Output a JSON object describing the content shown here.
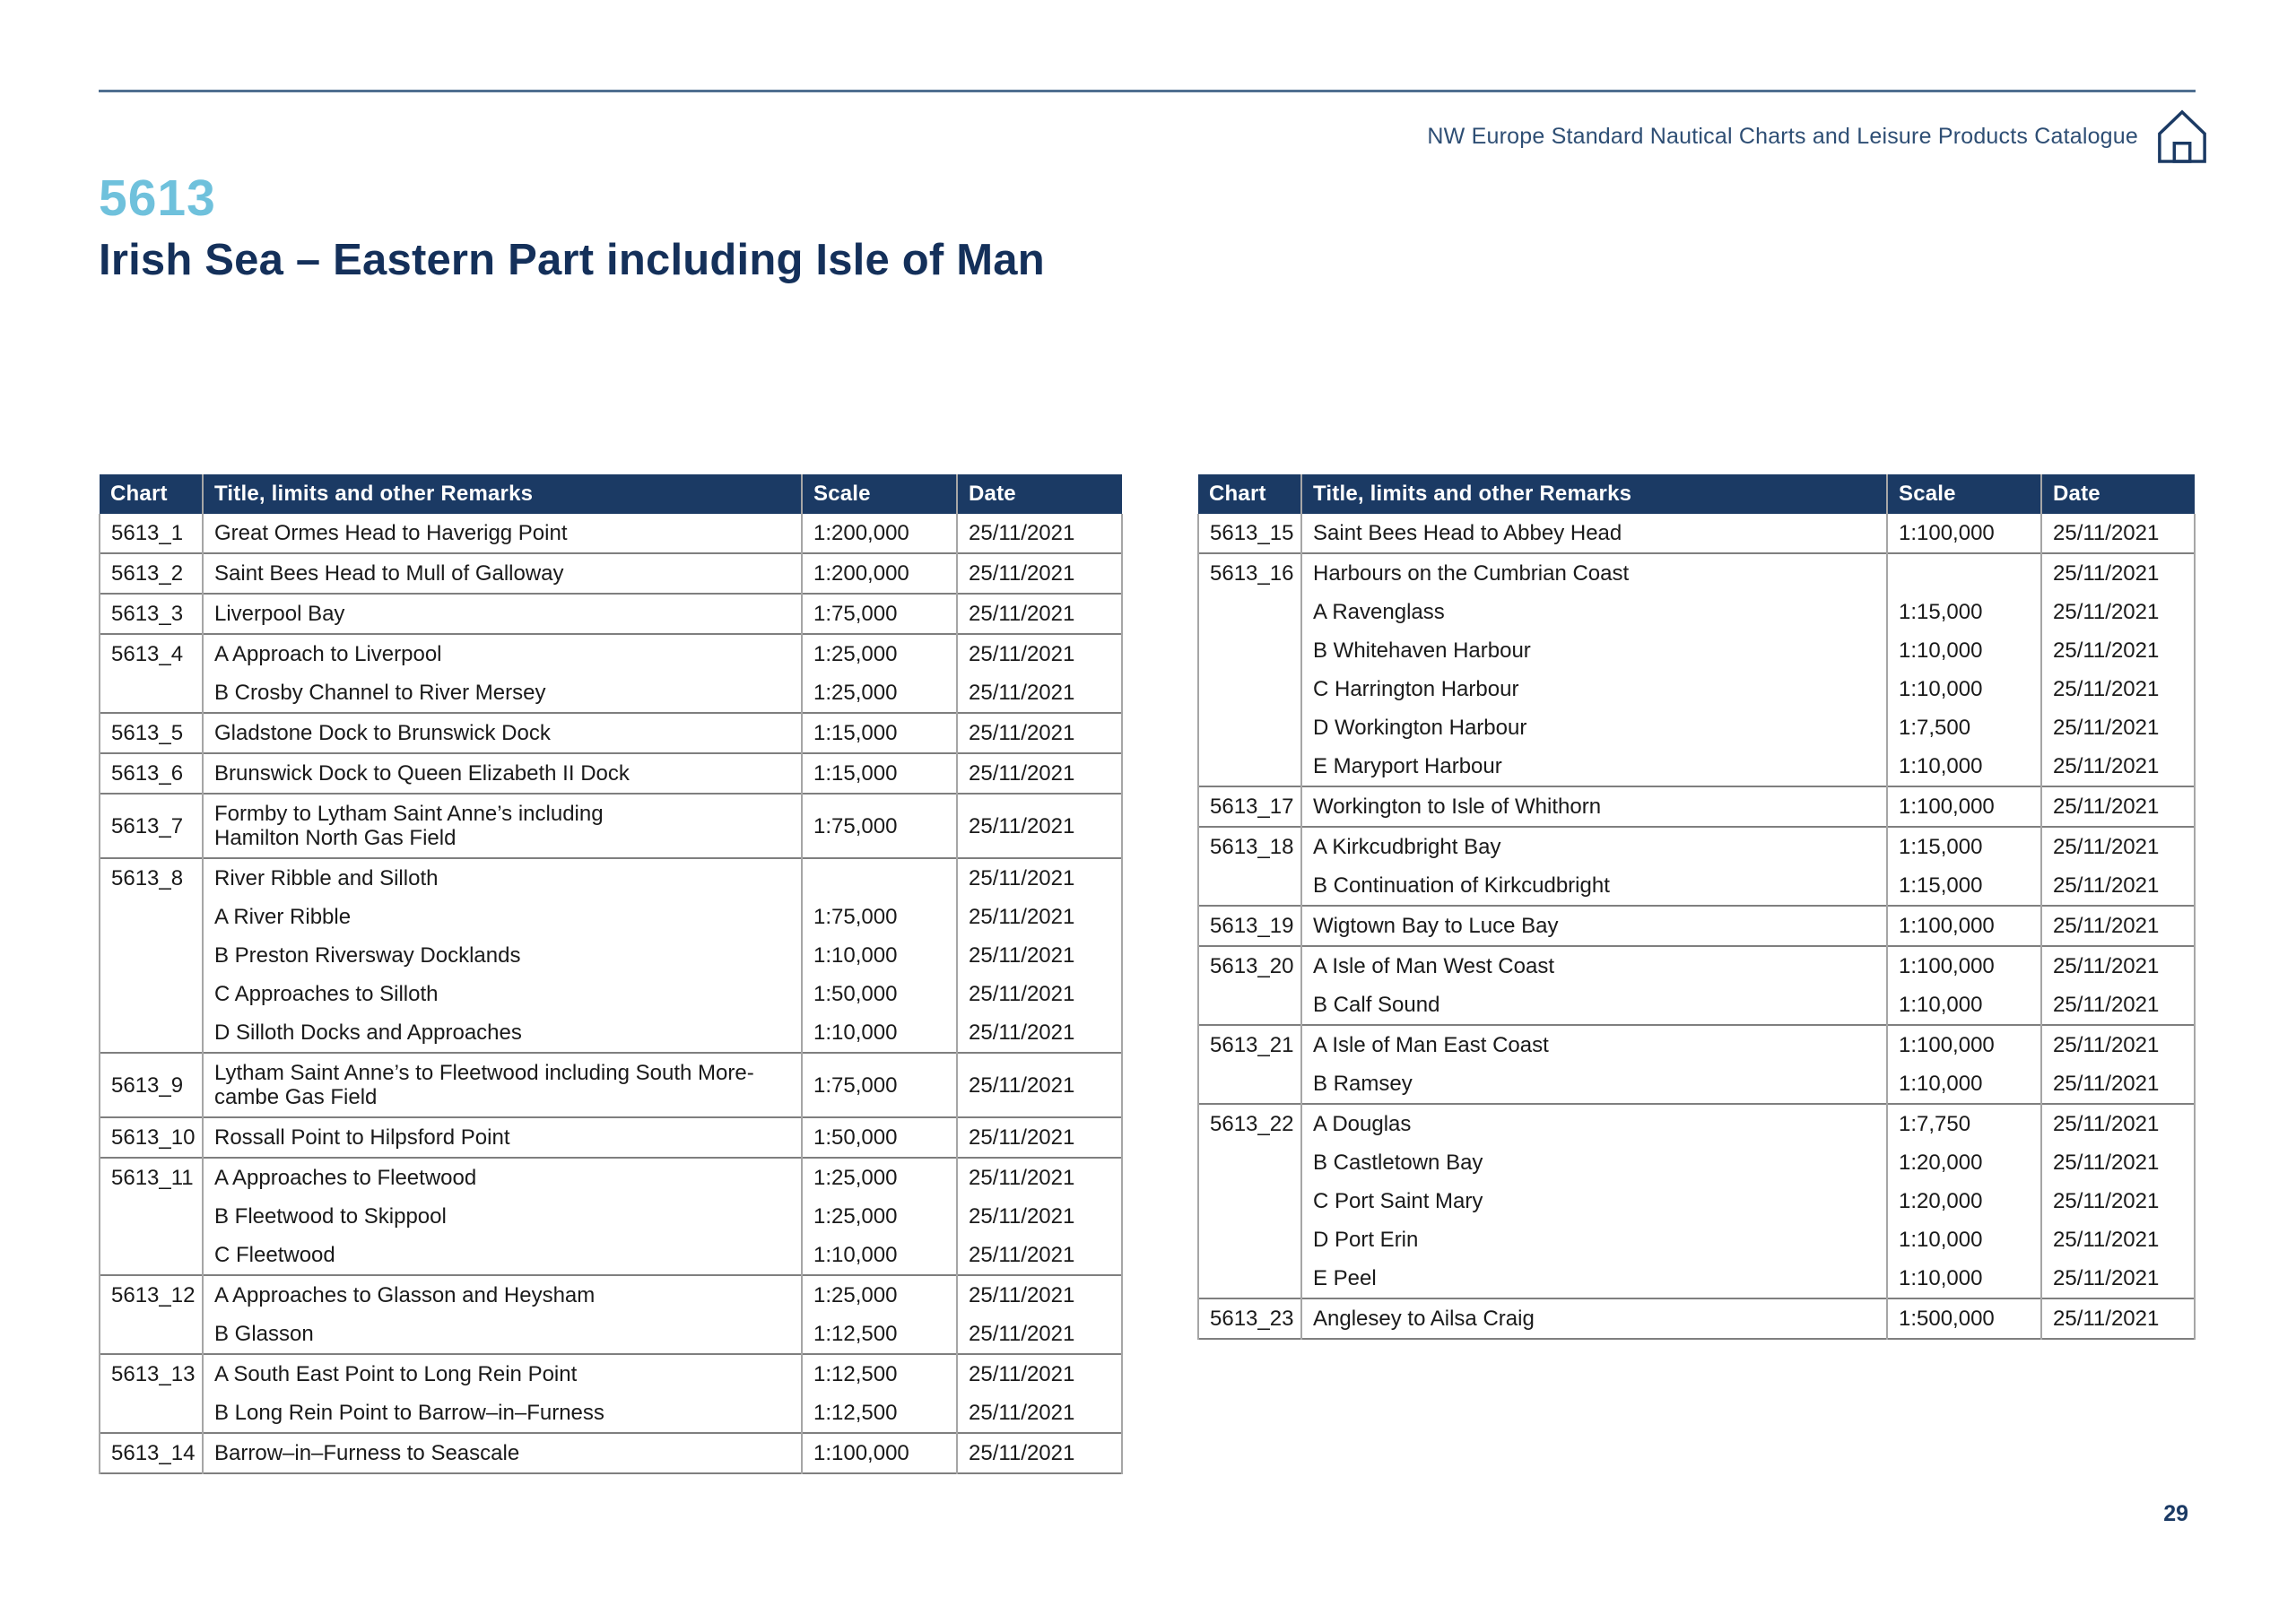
{
  "header": {
    "catalogue": "NW Europe Standard Nautical Charts and Leisure Products Catalogue"
  },
  "page": {
    "chart_number": "5613",
    "title": "Irish Sea – Eastern Part including Isle of Man",
    "page_number": "29"
  },
  "colors": {
    "accent_light_blue": "#6FC1DC",
    "navy": "#1B3A64",
    "title_navy": "#14305A",
    "rule_slate": "#4F6F90",
    "row_border": "#7F7F7F",
    "column_border": "#A6A6A6"
  },
  "columns": [
    "Chart",
    "Title, limits and other Remarks",
    "Scale",
    "Date"
  ],
  "tables": [
    {
      "name": "left",
      "groups": [
        {
          "chart": "5613_1",
          "rows": [
            {
              "title": "Great Ormes Head to Haverigg Point",
              "scale": "1:200,000",
              "date": "25/11/2021"
            }
          ]
        },
        {
          "chart": "5613_2",
          "rows": [
            {
              "title": "Saint Bees Head to Mull of Galloway",
              "scale": "1:200,000",
              "date": "25/11/2021"
            }
          ]
        },
        {
          "chart": "5613_3",
          "rows": [
            {
              "title": "Liverpool Bay",
              "scale": "1:75,000",
              "date": "25/11/2021"
            }
          ]
        },
        {
          "chart": "5613_4",
          "rows": [
            {
              "title": "A Approach to Liverpool",
              "scale": "1:25,000",
              "date": "25/11/2021"
            },
            {
              "title": "B Crosby Channel to River Mersey",
              "scale": "1:25,000",
              "date": "25/11/2021"
            }
          ]
        },
        {
          "chart": "5613_5",
          "rows": [
            {
              "title": "Gladstone Dock to Brunswick Dock",
              "scale": "1:15,000",
              "date": "25/11/2021"
            }
          ]
        },
        {
          "chart": "5613_6",
          "rows": [
            {
              "title": "Brunswick Dock to Queen Elizabeth II Dock",
              "scale": "1:15,000",
              "date": "25/11/2021"
            }
          ]
        },
        {
          "chart": "5613_7",
          "rows": [
            {
              "title": "Formby to Lytham Saint Anne’s including\nHamilton North Gas Field",
              "scale": "1:75,000",
              "date": "25/11/2021"
            }
          ]
        },
        {
          "chart": "5613_8",
          "rows": [
            {
              "title": "River Ribble and Silloth",
              "scale": "",
              "date": "25/11/2021"
            },
            {
              "title": "A River Ribble",
              "scale": "1:75,000",
              "date": "25/11/2021"
            },
            {
              "title": "B Preston Riversway Docklands",
              "scale": "1:10,000",
              "date": "25/11/2021"
            },
            {
              "title": "C Approaches to Silloth",
              "scale": "1:50,000",
              "date": "25/11/2021"
            },
            {
              "title": "D Silloth Docks and Approaches",
              "scale": "1:10,000",
              "date": "25/11/2021"
            }
          ]
        },
        {
          "chart": "5613_9",
          "rows": [
            {
              "title": "Lytham Saint Anne’s to Fleetwood including South More-\ncambe Gas Field",
              "scale": "1:75,000",
              "date": "25/11/2021"
            }
          ]
        },
        {
          "chart": "5613_10",
          "rows": [
            {
              "title": "Rossall Point to Hilpsford Point",
              "scale": "1:50,000",
              "date": "25/11/2021"
            }
          ]
        },
        {
          "chart": "5613_11",
          "rows": [
            {
              "title": "A Approaches to Fleetwood",
              "scale": "1:25,000",
              "date": "25/11/2021"
            },
            {
              "title": "B Fleetwood to Skippool",
              "scale": "1:25,000",
              "date": "25/11/2021"
            },
            {
              "title": "C Fleetwood",
              "scale": "1:10,000",
              "date": "25/11/2021"
            }
          ]
        },
        {
          "chart": "5613_12",
          "rows": [
            {
              "title": "A Approaches to Glasson and Heysham",
              "scale": "1:25,000",
              "date": "25/11/2021"
            },
            {
              "title": "B Glasson",
              "scale": "1:12,500",
              "date": "25/11/2021"
            }
          ]
        },
        {
          "chart": "5613_13",
          "rows": [
            {
              "title": "A South East Point to Long Rein Point",
              "scale": "1:12,500",
              "date": "25/11/2021"
            },
            {
              "title": "B Long Rein Point to Barrow–in–Furness",
              "scale": "1:12,500",
              "date": "25/11/2021"
            }
          ]
        },
        {
          "chart": "5613_14",
          "rows": [
            {
              "title": "Barrow–in–Furness to Seascale",
              "scale": "1:100,000",
              "date": "25/11/2021"
            }
          ]
        }
      ]
    },
    {
      "name": "right",
      "groups": [
        {
          "chart": "5613_15",
          "rows": [
            {
              "title": "Saint Bees Head to Abbey Head",
              "scale": "1:100,000",
              "date": "25/11/2021"
            }
          ]
        },
        {
          "chart": "5613_16",
          "rows": [
            {
              "title": "Harbours on the Cumbrian Coast",
              "scale": "",
              "date": "25/11/2021"
            },
            {
              "title": "A Ravenglass",
              "scale": "1:15,000",
              "date": "25/11/2021"
            },
            {
              "title": "B Whitehaven Harbour",
              "scale": "1:10,000",
              "date": "25/11/2021"
            },
            {
              "title": "C Harrington Harbour",
              "scale": "1:10,000",
              "date": "25/11/2021"
            },
            {
              "title": "D Workington Harbour",
              "scale": "1:7,500",
              "date": "25/11/2021"
            },
            {
              "title": "E Maryport Harbour",
              "scale": "1:10,000",
              "date": "25/11/2021"
            }
          ]
        },
        {
          "chart": "5613_17",
          "rows": [
            {
              "title": "Workington to Isle of Whithorn",
              "scale": "1:100,000",
              "date": "25/11/2021"
            }
          ]
        },
        {
          "chart": "5613_18",
          "rows": [
            {
              "title": "A Kirkcudbright Bay",
              "scale": "1:15,000",
              "date": "25/11/2021"
            },
            {
              "title": "B Continuation of Kirkcudbright",
              "scale": "1:15,000",
              "date": "25/11/2021"
            }
          ]
        },
        {
          "chart": "5613_19",
          "rows": [
            {
              "title": "Wigtown Bay to Luce Bay",
              "scale": "1:100,000",
              "date": "25/11/2021"
            }
          ]
        },
        {
          "chart": "5613_20",
          "rows": [
            {
              "title": "A Isle of Man West Coast",
              "scale": "1:100,000",
              "date": "25/11/2021"
            },
            {
              "title": "B Calf Sound",
              "scale": "1:10,000",
              "date": "25/11/2021"
            }
          ]
        },
        {
          "chart": "5613_21",
          "rows": [
            {
              "title": "A Isle of Man East Coast",
              "scale": "1:100,000",
              "date": "25/11/2021"
            },
            {
              "title": "B Ramsey",
              "scale": "1:10,000",
              "date": "25/11/2021"
            }
          ]
        },
        {
          "chart": "5613_22",
          "rows": [
            {
              "title": "A Douglas",
              "scale": "1:7,750",
              "date": "25/11/2021"
            },
            {
              "title": "B Castletown Bay",
              "scale": "1:20,000",
              "date": "25/11/2021"
            },
            {
              "title": "C Port Saint Mary",
              "scale": "1:20,000",
              "date": "25/11/2021"
            },
            {
              "title": "D Port Erin",
              "scale": "1:10,000",
              "date": "25/11/2021"
            },
            {
              "title": "E Peel",
              "scale": "1:10,000",
              "date": "25/11/2021"
            }
          ]
        },
        {
          "chart": "5613_23",
          "rows": [
            {
              "title": "Anglesey to Ailsa Craig",
              "scale": "1:500,000",
              "date": "25/11/2021"
            }
          ]
        }
      ]
    }
  ]
}
